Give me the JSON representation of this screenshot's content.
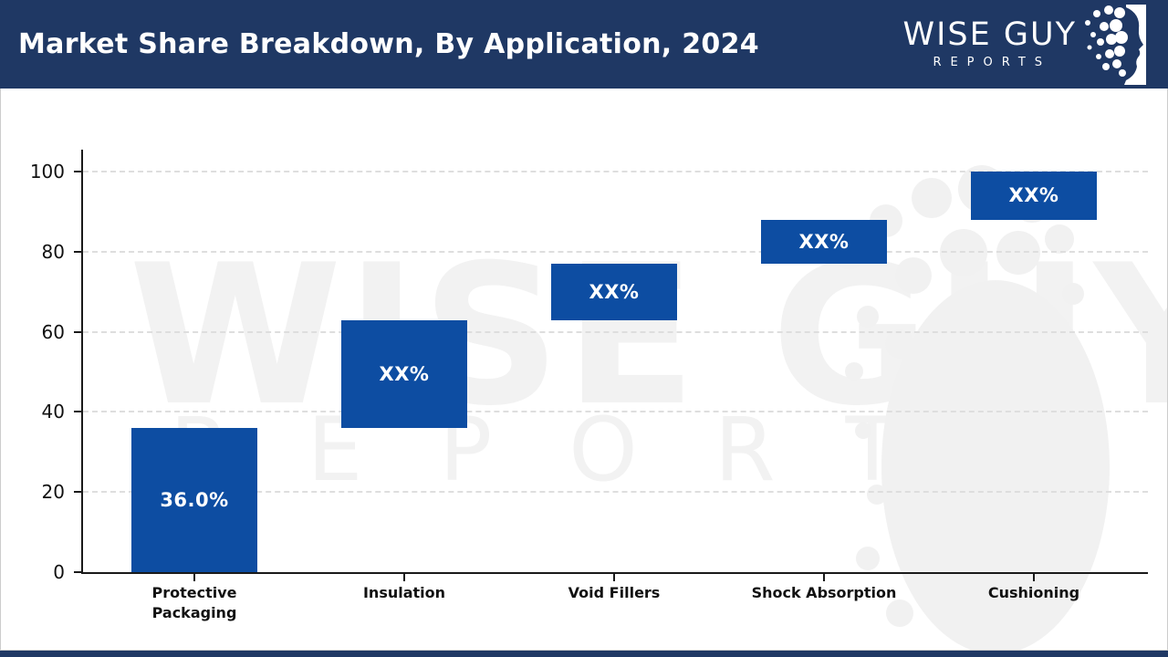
{
  "header": {
    "title": "Market Share Breakdown, By Application, 2024",
    "logo": {
      "line1": "WISE GUY",
      "line2": "REPORTS"
    }
  },
  "watermark": {
    "line1": "WISE GUY",
    "line2": "REPORTS"
  },
  "chart_data": {
    "type": "bar",
    "subtype": "waterfall",
    "title": "Market Share Breakdown, By Application, 2024",
    "categories": [
      "Protective\nPackaging",
      "Insulation",
      "Void Fillers",
      "Shock Absorption",
      "Cushioning"
    ],
    "segments": [
      {
        "category": "Protective\nPackaging",
        "start": 0,
        "end": 36,
        "label": "36.0%"
      },
      {
        "category": "Insulation",
        "start": 36,
        "end": 63,
        "label": "XX%"
      },
      {
        "category": "Void Fillers",
        "start": 63,
        "end": 77,
        "label": "XX%"
      },
      {
        "category": "Shock Absorption",
        "start": 77,
        "end": 88,
        "label": "XX%"
      },
      {
        "category": "Cushioning",
        "start": 88,
        "end": 100,
        "label": "XX%"
      }
    ],
    "yticks": [
      0,
      20,
      40,
      60,
      80,
      100
    ],
    "ylim": [
      0,
      105.5
    ],
    "xlabel": "",
    "ylabel": "",
    "grid": "horizontal-dashed",
    "legend": "none",
    "bar_color": "#0d4da2",
    "value_label_color": "#ffffff"
  },
  "colors": {
    "header_bg": "#1f3864",
    "footer_bg": "#1f3864",
    "bar": "#0d4da2",
    "axis": "#1a1a1a",
    "grid": "#dedede",
    "watermark": "#f2f2f2",
    "card_border": "#cccccc"
  }
}
